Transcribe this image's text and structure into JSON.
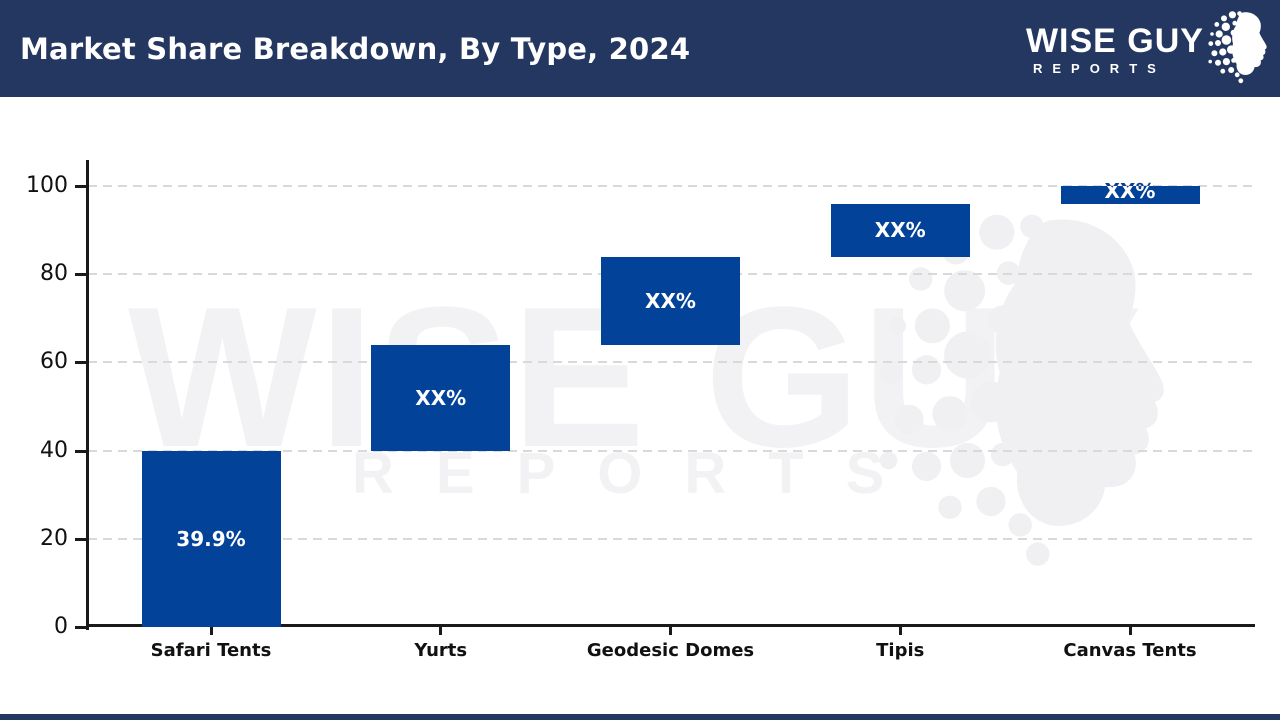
{
  "header": {
    "title": "Market Share Breakdown, By Type, 2024",
    "logo": {
      "line1": "WISE GUY",
      "line2": "REPORTS"
    }
  },
  "watermark": {
    "line1": "WISE GUY",
    "line2": "REPORTS"
  },
  "colors": {
    "header_bg": "#233760",
    "footer_bg": "#233760",
    "bar_blue": "#034299",
    "bar_label_white": "#ffffff",
    "overflow_label_navy": "#0f3e8a",
    "gridline_gray": "#d9d9d9",
    "axis_black": "#1a1a1a",
    "watermark_gray": "#f2f2f4"
  },
  "chart_data": {
    "type": "bar",
    "subtype": "waterfall",
    "title": "Market Share Breakdown, By Type, 2024",
    "categories": [
      "Safari Tents",
      "Yurts",
      "Geodesic Domes",
      "Tipis",
      "Canvas Tents"
    ],
    "segments": [
      {
        "category": "Safari Tents",
        "start": 0,
        "end": 39.9,
        "label": "39.9%"
      },
      {
        "category": "Yurts",
        "start": 40,
        "end": 64,
        "label": "XX%"
      },
      {
        "category": "Geodesic Domes",
        "start": 64,
        "end": 84,
        "label": "XX%"
      },
      {
        "category": "Tipis",
        "start": 84,
        "end": 96,
        "label": "XX%"
      },
      {
        "category": "Canvas Tents",
        "start": 96,
        "end": 100,
        "label": "XX%"
      }
    ],
    "yticks": [
      0,
      20,
      40,
      60,
      80,
      100
    ],
    "ylim": [
      0,
      105
    ],
    "xlabel": "",
    "ylabel": "",
    "grid": "horizontal-dashed",
    "legend": "none",
    "bar_color": "#034299",
    "value_label_color": "#ffffff"
  }
}
